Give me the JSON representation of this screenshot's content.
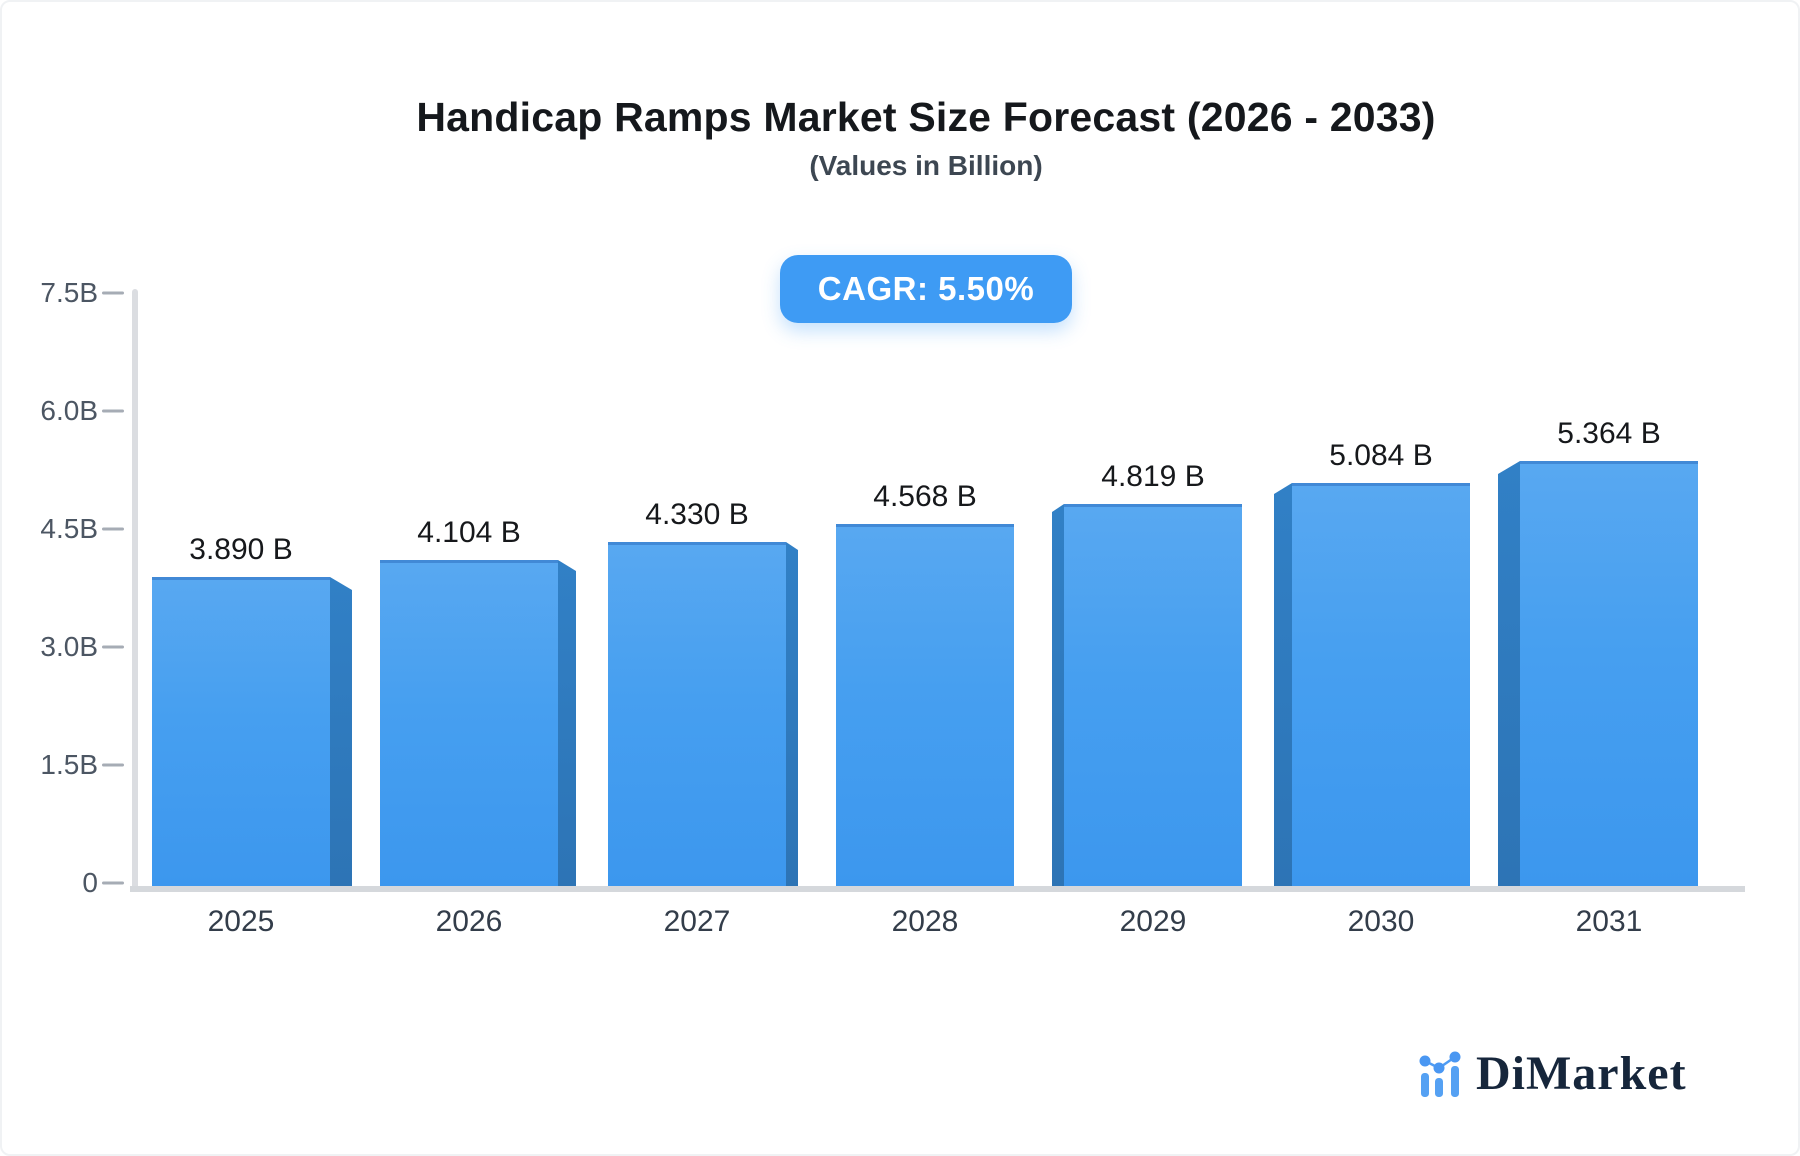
{
  "title": "Handicap Ramps Market Size Forecast (2026 - 2033)",
  "subtitle": "(Values in Billion)",
  "badge": {
    "label": "CAGR: 5.50%"
  },
  "chart_data": {
    "type": "bar",
    "title": "Handicap Ramps Market Size Forecast (2026 - 2033)",
    "subtitle": "(Values in Billion)",
    "categories": [
      "2025",
      "2026",
      "2027",
      "2028",
      "2029",
      "2030",
      "2031"
    ],
    "values": [
      3.89,
      4.104,
      4.33,
      4.568,
      4.819,
      5.084,
      5.364
    ],
    "value_labels": [
      "3.890 B",
      "4.104 B",
      "4.330 B",
      "4.568 B",
      "4.819 B",
      "5.084 B",
      "5.364 B"
    ],
    "xlabel": "",
    "ylabel": "",
    "ylim": [
      0,
      7.5
    ],
    "ytick_labels": [
      "7.5B",
      "6.0B",
      "4.5B",
      "3.0B",
      "1.5B",
      "0"
    ],
    "ytick_values": [
      7.5,
      6.0,
      4.5,
      3.0,
      1.5,
      0
    ],
    "grid": false,
    "legend": "none",
    "cagr": "5.50%",
    "colors": {
      "bar_face_top": "#58a8f1",
      "bar_face_bottom": "#3c97ee",
      "bar_side": "#2e78bc",
      "badge_bg": "#3e9bf4",
      "badge_text": "#ffffff",
      "axis": "#dbdde1",
      "baseline": "#d5d8dc",
      "ytick_text": "#4c5663",
      "xtick_text": "#333d4a"
    }
  },
  "logo": {
    "text": "DiMarket",
    "icon": "bar-chart-logo-icon",
    "text_color": "#16263b",
    "icon_color": "#4f9cf4"
  }
}
